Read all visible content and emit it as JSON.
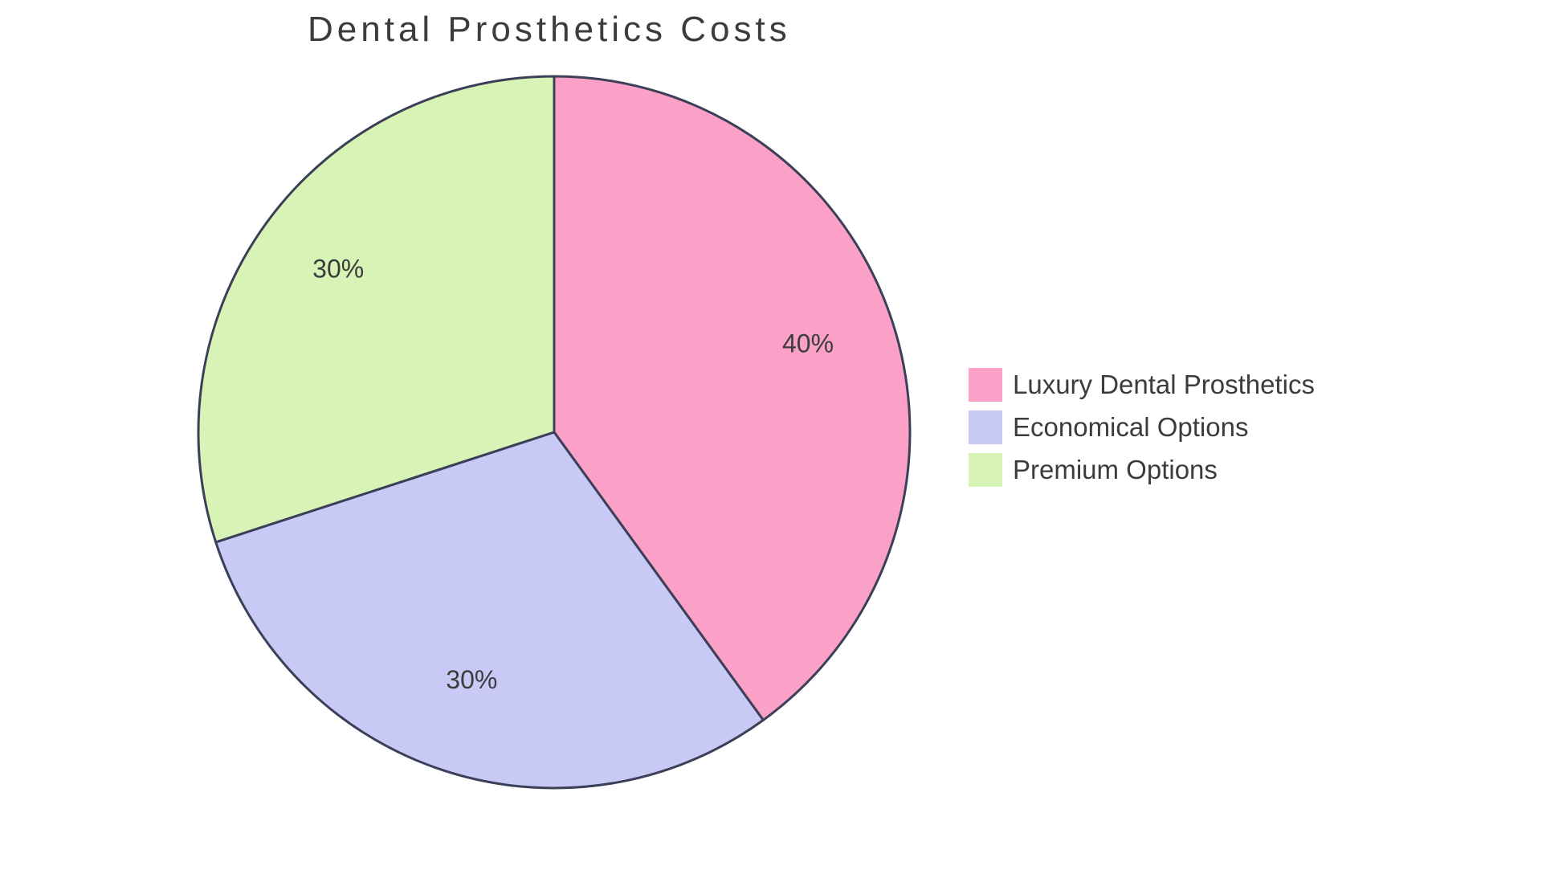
{
  "chart_data": {
    "type": "pie",
    "title": "Dental Prosthetics Costs",
    "categories": [
      "Luxury Dental Prosthetics",
      "Economical Options",
      "Premium Options"
    ],
    "values": [
      40,
      30,
      30
    ],
    "slices": [
      {
        "label": "Luxury Dental Prosthetics",
        "value": 40,
        "percent_label": "40%",
        "color": "#FBA1C8"
      },
      {
        "label": "Economical Options",
        "value": 30,
        "percent_label": "30%",
        "color": "#C9C9F6"
      },
      {
        "label": "Premium Options",
        "value": 30,
        "percent_label": "30%",
        "color": "#D8F3B6"
      }
    ],
    "start_angle_deg": 0,
    "direction": "clockwise",
    "legend_position": "right",
    "stroke_color": "#3B3F58",
    "stroke_width": 3,
    "label_color": "#3C3C3C",
    "title_color": "#3C3C3C",
    "background_color": "#FFFFFF"
  }
}
